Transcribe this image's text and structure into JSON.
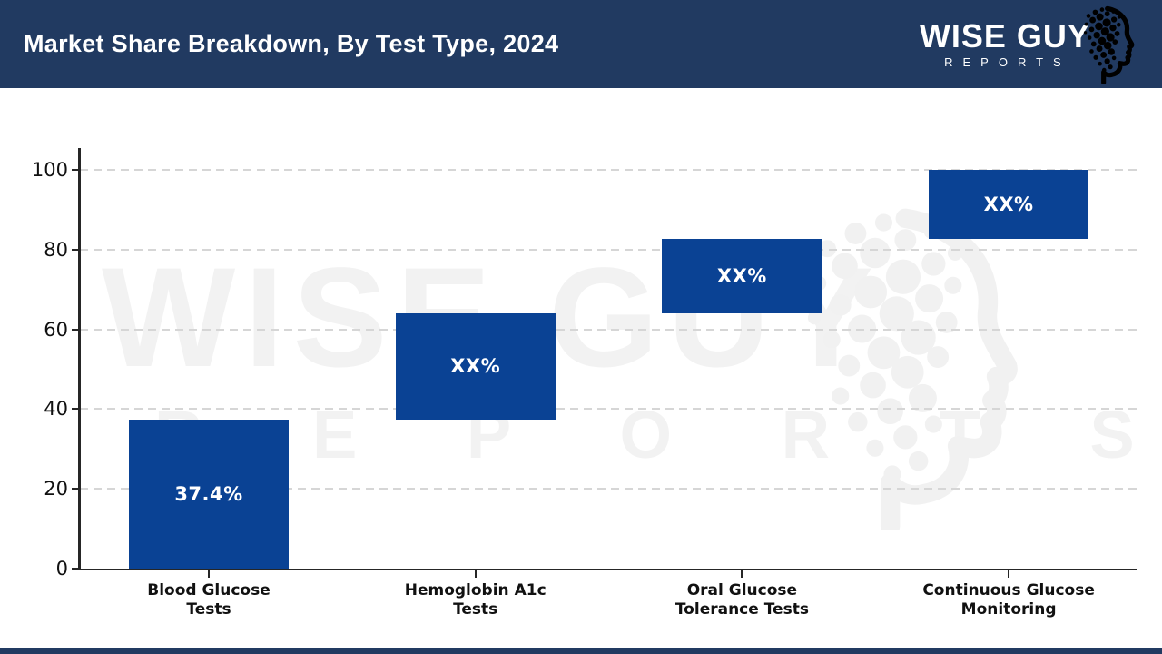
{
  "header": {
    "title": "Market Share Breakdown, By Test Type, 2024",
    "logo": {
      "wordmark": "WISE GUY",
      "subtext": "REPORTS"
    }
  },
  "watermark": {
    "line1": "WISE GUY",
    "line2": "R E P O R T S"
  },
  "colors": {
    "header_bg": "#213a61",
    "footer_bg": "#213a61",
    "bar": "#0a4294",
    "grid": "#d6d6d6",
    "axis": "#262626",
    "watermark": "#f2f2f2",
    "bar_label": "#ffffff"
  },
  "chart_data": {
    "type": "bar",
    "subtype": "waterfall",
    "title": "Market Share Breakdown, By Test Type, 2024",
    "categories": [
      "Blood Glucose Tests",
      "Hemoglobin A1c Tests",
      "Oral Glucose Tolerance Tests",
      "Continuous Glucose Monitoring"
    ],
    "category_lines": [
      [
        "Blood Glucose",
        "Tests"
      ],
      [
        "Hemoglobin A1c",
        "Tests"
      ],
      [
        "Oral Glucose",
        "Tolerance Tests"
      ],
      [
        "Continuous Glucose",
        "Monitoring"
      ]
    ],
    "bars": [
      {
        "category": "Blood Glucose Tests",
        "start": 0,
        "end": 37.4,
        "value_label": "37.4%"
      },
      {
        "category": "Hemoglobin A1c Tests",
        "start": 37.4,
        "end": 64.1,
        "value_label": "XX%"
      },
      {
        "category": "Oral Glucose Tolerance Tests",
        "start": 64.1,
        "end": 82.6,
        "value_label": "XX%"
      },
      {
        "category": "Continuous Glucose Monitoring",
        "start": 82.6,
        "end": 100,
        "value_label": "XX%"
      }
    ],
    "y_ticks": [
      0,
      20,
      40,
      60,
      80,
      100
    ],
    "ylim": [
      0,
      105
    ],
    "xlabel": "",
    "ylabel": "",
    "grid": "horizontal-dashed",
    "legend": "none"
  }
}
